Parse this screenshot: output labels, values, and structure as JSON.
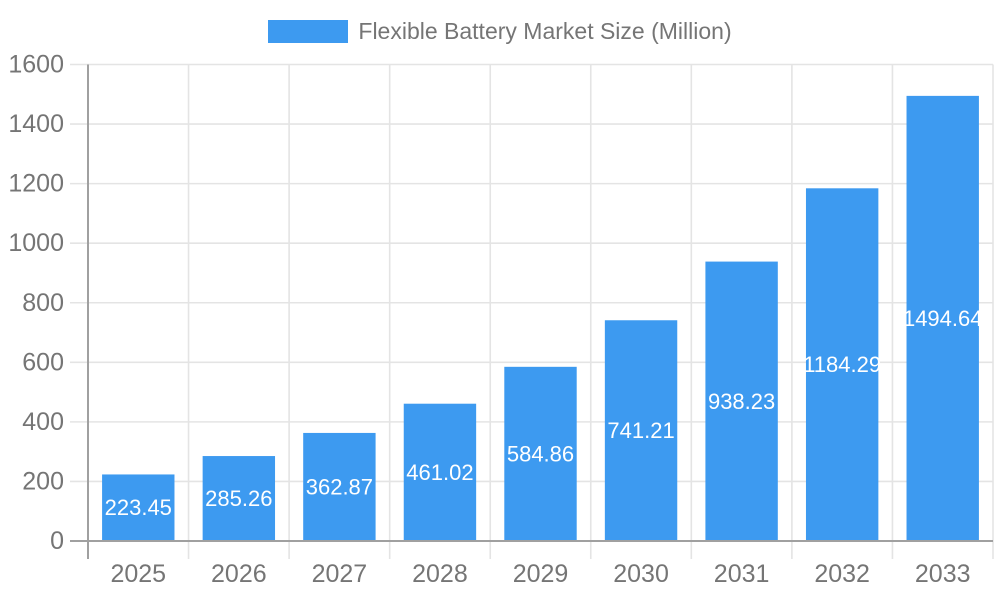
{
  "chart_data": {
    "type": "bar",
    "title": "Flexible Battery Market Size (Million)",
    "legend_position": "top",
    "categories": [
      "2025",
      "2026",
      "2027",
      "2028",
      "2029",
      "2030",
      "2031",
      "2032",
      "2033"
    ],
    "series": [
      {
        "name": "Flexible Battery Market Size (Million)",
        "values": [
          223.45,
          285.26,
          362.87,
          461.02,
          584.86,
          741.21,
          938.23,
          1184.29,
          1494.64
        ]
      }
    ],
    "value_labels": [
      "223.45",
      "285.26",
      "362.87",
      "461.02",
      "584.86",
      "741.21",
      "938.23",
      "1184.29",
      "1494.64"
    ],
    "xlabel": "",
    "ylabel": "",
    "ylim": [
      0,
      1600
    ],
    "y_ticks": [
      0,
      200,
      400,
      600,
      800,
      1000,
      1200,
      1400,
      1600
    ],
    "grid": true,
    "value_label_position": "inside-center"
  },
  "colors": {
    "bar": "#3D9AF0",
    "value_label": "#FFFFFF",
    "axis_line": "#A0A0A0",
    "gridline": "#E4E4E4",
    "tick_label": "#757575",
    "legend_text": "#757575",
    "background": "#FFFFFF"
  }
}
